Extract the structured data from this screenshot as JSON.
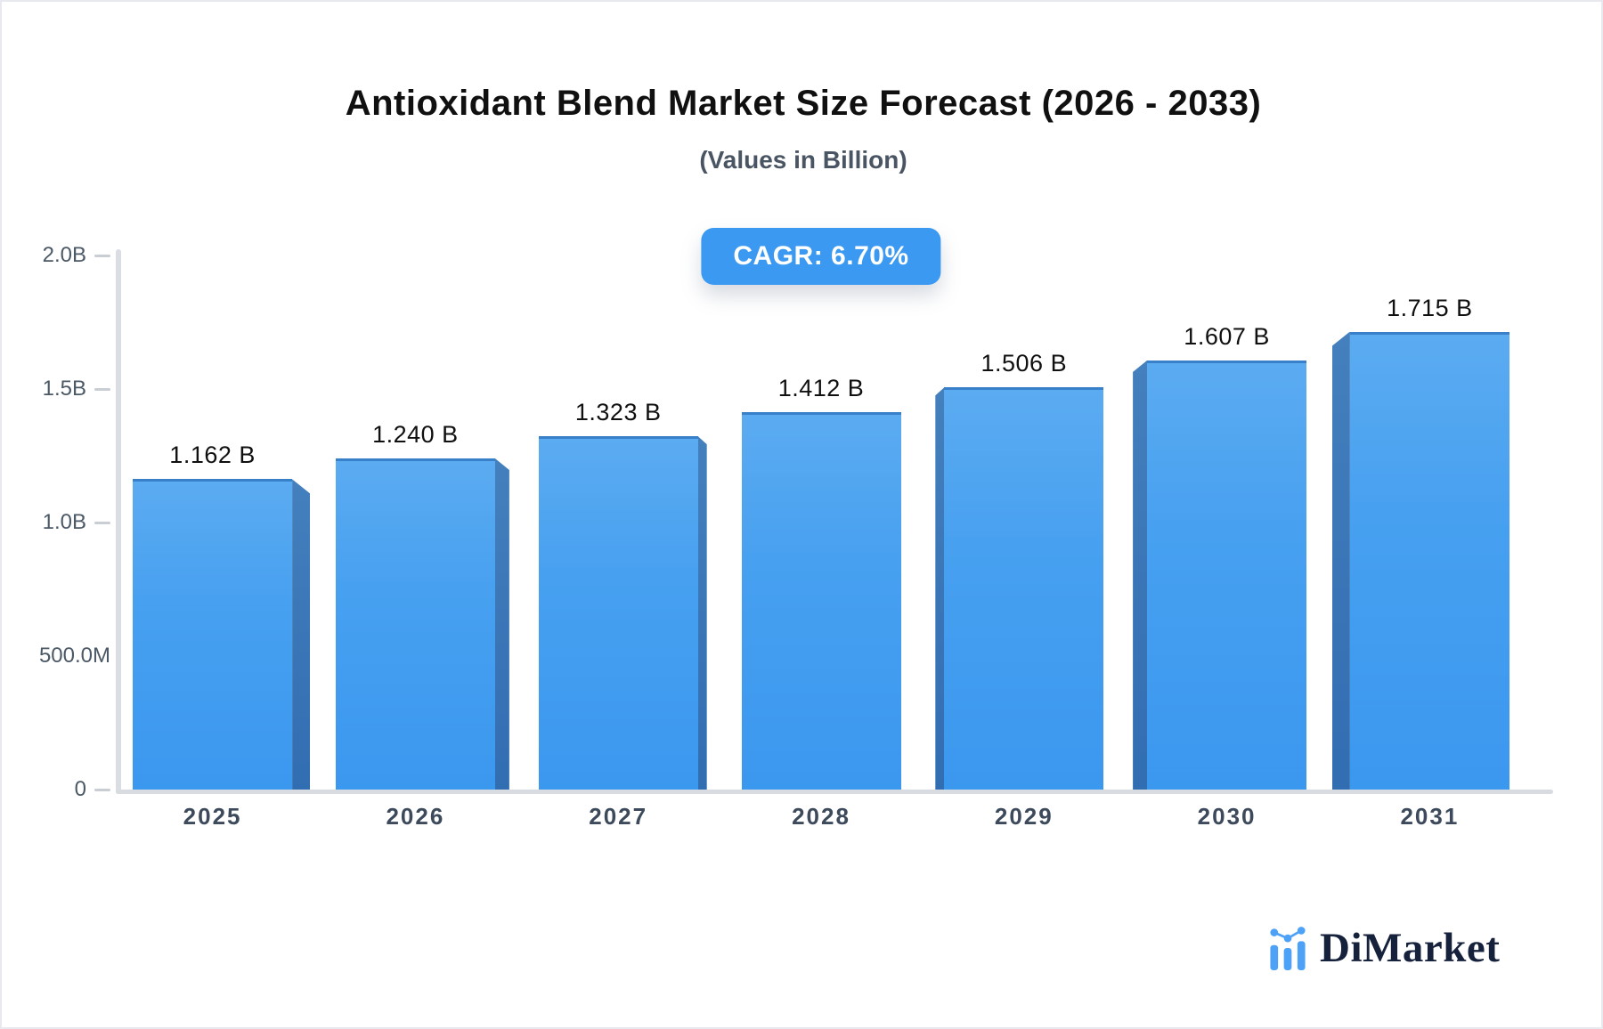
{
  "title": "Antioxidant Blend Market Size Forecast (2026 - 2033)",
  "subtitle": "(Values in Billion)",
  "badge": {
    "label": "CAGR: 6.70%"
  },
  "logo": {
    "name": "DiMarket",
    "icon": "mini-bar-chart-icon"
  },
  "colors": {
    "accent_blue": "#3b99f1",
    "bar_fill_top": "#5babf1",
    "bar_fill_bottom": "#3b98ef",
    "bar_side_shade": "#336fb2",
    "axis_gray": "#d8dbdf",
    "text_dark": "#101010",
    "text_slate": "#4b5865",
    "logo_navy": "#16213b"
  },
  "chart_data": {
    "type": "bar",
    "title": "Antioxidant Blend Market Size Forecast (2026 - 2033)",
    "subtitle": "(Values in Billion)",
    "annotation": "CAGR: 6.70%",
    "categories": [
      "2025",
      "2026",
      "2027",
      "2028",
      "2029",
      "2030",
      "2031"
    ],
    "values": [
      1.162,
      1.24,
      1.323,
      1.412,
      1.506,
      1.607,
      1.715
    ],
    "value_labels": [
      "1.162 B",
      "1.240 B",
      "1.323 B",
      "1.412 B",
      "1.506 B",
      "1.607 B",
      "1.715 B"
    ],
    "unit": "billion",
    "ylim": [
      0,
      2.0
    ],
    "y_ticks": [
      {
        "label": "2.0B",
        "value": 2.0,
        "dash": true
      },
      {
        "label": "1.5B",
        "value": 1.5,
        "dash": true
      },
      {
        "label": "1.0B",
        "value": 1.0,
        "dash": true
      },
      {
        "label": "500.0M",
        "value": 0.5,
        "dash": false
      },
      {
        "label": "0",
        "value": 0.0,
        "dash": true
      }
    ],
    "grid": false,
    "legend": "none",
    "style": "3d-beveled-bars-perspective-toward-center"
  }
}
